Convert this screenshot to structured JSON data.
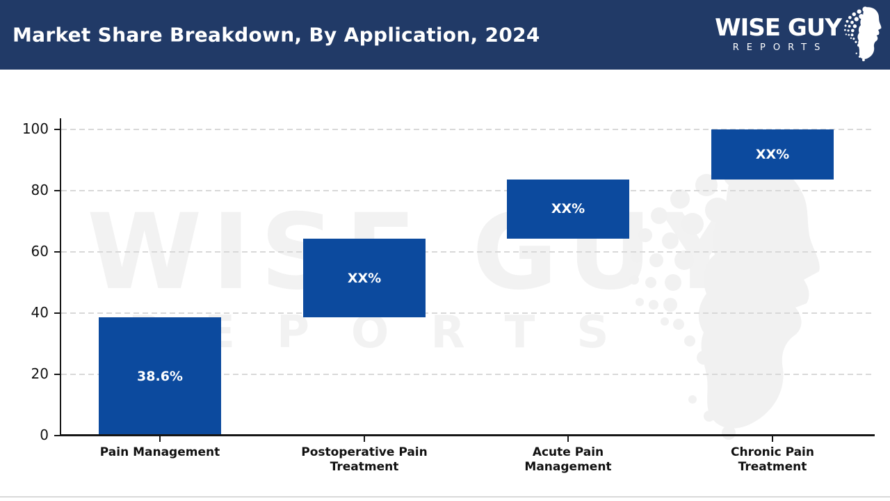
{
  "header": {
    "title": "Market Share Breakdown, By Application, 2024",
    "logo": {
      "line1": "WISE GUY",
      "line2": "REPORTS"
    }
  },
  "watermark": {
    "line1": "WISE GUY",
    "line2": "REPORTS"
  },
  "colors": {
    "header_bg": "#213A67",
    "bar": "#0C4A9E",
    "grid": "#D8D8D8",
    "axis": "#161616",
    "bar_label": "#FFFFFF",
    "watermark": "#F2F2F2"
  },
  "chart_data": {
    "type": "bar",
    "subtype": "waterfall",
    "title": "Market Share Breakdown, By Application, 2024",
    "xlabel": "",
    "ylabel": "",
    "categories": [
      "Pain Management",
      "Postoperative Pain Treatment",
      "Acute Pain Management",
      "Chronic Pain Treatment"
    ],
    "category_lines": [
      [
        "Pain Management"
      ],
      [
        "Postoperative Pain",
        "Treatment"
      ],
      [
        "Acute Pain",
        "Management"
      ],
      [
        "Chronic Pain",
        "Treatment"
      ]
    ],
    "segments": [
      {
        "category": "Pain Management",
        "start": 0,
        "end": 38.6,
        "label": "38.6%"
      },
      {
        "category": "Postoperative Pain Treatment",
        "start": 38.6,
        "end": 64.3,
        "label": "XX%"
      },
      {
        "category": "Acute Pain Management",
        "start": 64.3,
        "end": 83.7,
        "label": "XX%"
      },
      {
        "category": "Chronic Pain Treatment",
        "start": 83.7,
        "end": 100,
        "label": "XX%"
      }
    ],
    "ylim": [
      0,
      100
    ],
    "yticks": [
      0,
      20,
      40,
      60,
      80,
      100
    ],
    "grid": "horizontal-dashed",
    "legend": "none",
    "bar_color": "#0C4A9E"
  }
}
